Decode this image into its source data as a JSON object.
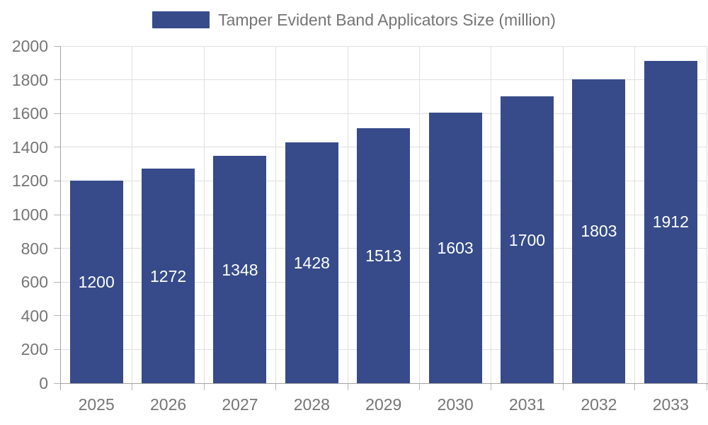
{
  "chart_data": {
    "type": "bar",
    "title": "Tamper Evident Band Applicators Size (million)",
    "legend": {
      "label": "Tamper Evident Band Applicators Size (million)",
      "position": "top-center"
    },
    "categories": [
      "2025",
      "2026",
      "2027",
      "2028",
      "2029",
      "2030",
      "2031",
      "2032",
      "2033"
    ],
    "series": [
      {
        "name": "Tamper Evident Band Applicators Size (million)",
        "values": [
          1200,
          1272,
          1348,
          1428,
          1513,
          1603,
          1700,
          1803,
          1912
        ]
      }
    ],
    "xlabel": "",
    "ylabel": "",
    "ylim": [
      0,
      2000
    ],
    "y_ticks": [
      0,
      200,
      400,
      600,
      800,
      1000,
      1200,
      1400,
      1600,
      1800,
      2000
    ],
    "grid": "horizontal+vertical",
    "data_label_position": "inside-center",
    "colors": {
      "bar": "#374B8A",
      "data_label": "#FFFFFF",
      "axis_text": "#757575",
      "axis_line": "#A3A3A3",
      "gridline": "#E0E0E0",
      "tick": "#B5B5B5",
      "background": "#FFFFFF"
    }
  }
}
